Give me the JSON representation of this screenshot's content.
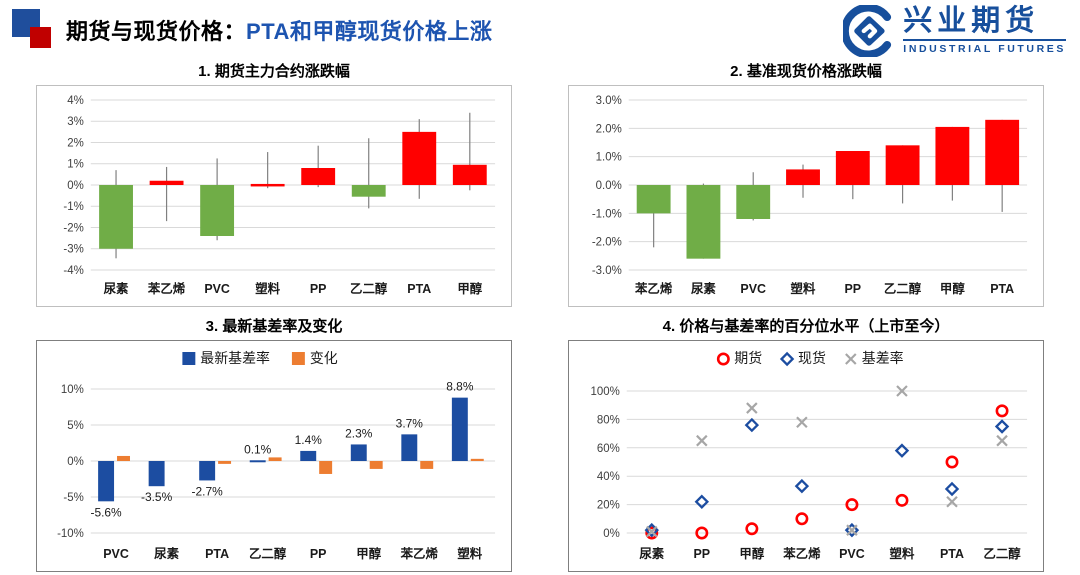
{
  "header": {
    "title_prefix": "期货与现货价格：",
    "title_highlight": "PTA和甲醇现货价格上涨",
    "logo": {
      "name": "兴业期货",
      "subtitle": "INDUSTRIAL FUTURES"
    }
  },
  "colors": {
    "up_red": "#FF0000",
    "down_green": "#70AD47",
    "whisker_gray": "#808080",
    "basis_blue": "#1C4DA1",
    "change_orange": "#ED7D31",
    "scatter_gray": "#A6A6A6",
    "gridline": "#D9D9D9",
    "tick_text": "#404040",
    "category_text": "#1A1A1A",
    "title_blue": "#1D54B0",
    "logo_blue": "#174F9C"
  },
  "chart_data": [
    {
      "type": "candlestick",
      "title": "1. 期货主力合约涨跌幅",
      "categories": [
        "尿素",
        "苯乙烯",
        "PVC",
        "塑料",
        "PP",
        "乙二醇",
        "PTA",
        "甲醇"
      ],
      "series": [
        {
          "name": "change",
          "values": [
            -3.0,
            0.2,
            -2.4,
            0.05,
            0.8,
            -0.55,
            2.5,
            0.95
          ]
        },
        {
          "name": "high",
          "values": [
            0.7,
            0.85,
            1.25,
            1.55,
            1.85,
            2.2,
            3.1,
            3.4
          ]
        },
        {
          "name": "low",
          "values": [
            -3.45,
            -1.7,
            -2.6,
            -0.15,
            -0.1,
            -1.1,
            -0.65,
            -0.25
          ]
        }
      ],
      "ylim": [
        -4,
        4
      ],
      "y_ticks": [
        "4%",
        "3%",
        "2%",
        "1%",
        "0%",
        "-1%",
        "-2%",
        "-3%",
        "-4%"
      ],
      "grid": true,
      "legend": null
    },
    {
      "type": "candlestick",
      "title": "2. 基准现货价格涨跌幅",
      "categories": [
        "苯乙烯",
        "尿素",
        "PVC",
        "塑料",
        "PP",
        "乙二醇",
        "甲醇",
        "PTA"
      ],
      "series": [
        {
          "name": "change",
          "values": [
            -1.0,
            -2.6,
            -1.2,
            0.55,
            1.2,
            1.4,
            2.05,
            2.3
          ]
        },
        {
          "name": "high",
          "values": [
            0.0,
            0.05,
            0.45,
            0.72,
            1.2,
            1.4,
            2.05,
            2.3
          ]
        },
        {
          "name": "low",
          "values": [
            -2.2,
            -2.6,
            -1.25,
            -0.45,
            -0.5,
            -0.65,
            -0.55,
            -0.95
          ]
        }
      ],
      "ylim": [
        -3,
        3
      ],
      "y_ticks": [
        "3.0%",
        "2.0%",
        "1.0%",
        "0.0%",
        "-1.0%",
        "-2.0%",
        "-3.0%"
      ],
      "grid": true,
      "legend": null
    },
    {
      "type": "bar",
      "title": "3. 最新基差率及变化",
      "categories": [
        "PVC",
        "尿素",
        "PTA",
        "乙二醇",
        "PP",
        "甲醇",
        "苯乙烯",
        "塑料"
      ],
      "series": [
        {
          "name": "最新基差率",
          "color_key": "basis_blue",
          "values": [
            -5.6,
            -3.5,
            -2.7,
            0.1,
            1.4,
            2.3,
            3.7,
            8.8
          ],
          "labels": [
            "-5.6%",
            "-3.5%",
            "-2.7%",
            "0.1%",
            "1.4%",
            "2.3%",
            "3.7%",
            "8.8%"
          ]
        },
        {
          "name": "变化",
          "color_key": "change_orange",
          "values": [
            0.7,
            0.0,
            -0.4,
            0.5,
            -1.8,
            -1.1,
            -1.1,
            0.3
          ],
          "labels": null
        }
      ],
      "ylim": [
        -10,
        10
      ],
      "y_ticks": [
        "10%",
        "5%",
        "0%",
        "-5%",
        "-10%"
      ],
      "grid": true,
      "legend": {
        "position": "top"
      }
    },
    {
      "type": "scatter",
      "title": "4. 价格与基差率的百分位水平（上市至今）",
      "categories": [
        "尿素",
        "PP",
        "甲醇",
        "苯乙烯",
        "PVC",
        "塑料",
        "PTA",
        "乙二醇"
      ],
      "series": [
        {
          "name": "期货",
          "marker": "circle",
          "color_key": "up_red",
          "values": [
            0,
            0,
            3,
            10,
            20,
            23,
            50,
            86
          ]
        },
        {
          "name": "现货",
          "marker": "diamond",
          "color_key": "basis_blue",
          "values": [
            2,
            22,
            76,
            33,
            2,
            58,
            31,
            75
          ]
        },
        {
          "name": "基差率",
          "marker": "x",
          "color_key": "scatter_gray",
          "values": [
            1,
            65,
            88,
            78,
            2,
            100,
            22,
            65
          ]
        }
      ],
      "ylim": [
        0,
        100
      ],
      "y_ticks": [
        "100%",
        "80%",
        "60%",
        "40%",
        "20%",
        "0%"
      ],
      "grid": true,
      "legend": {
        "position": "top"
      }
    }
  ]
}
